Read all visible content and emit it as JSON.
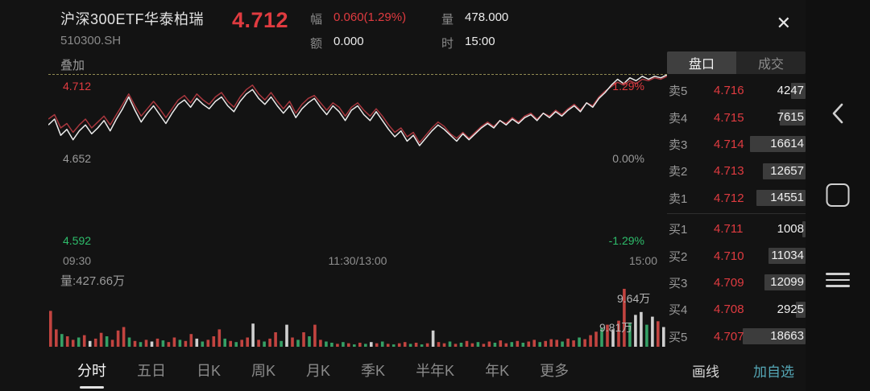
{
  "header": {
    "name": "沪深300ETF华泰柏瑞",
    "price": "4.712",
    "code": "510300.SH",
    "stats": [
      {
        "label": "幅",
        "value": "0.060(1.29%)",
        "color": "red"
      },
      {
        "label": "量",
        "value": "478.000",
        "color": "white"
      },
      {
        "label": "额",
        "value": "0.000",
        "color": "white"
      },
      {
        "label": "时",
        "value": "15:00",
        "color": "white"
      }
    ],
    "close_icon": "✕"
  },
  "chart": {
    "overlay_label": "叠加",
    "y_left_top": "4.712",
    "y_left_mid": "4.652",
    "y_left_bottom": "4.592",
    "y_right_top": "1.29%",
    "y_right_mid": "0.00%",
    "y_right_bottom": "-1.29%",
    "time_left": "09:30",
    "time_mid": "11:30/13:00",
    "time_right": "15:00",
    "volume_label": "量:427.66万",
    "vol_axis_1": "9.64万",
    "vol_axis_2": "9.81万"
  },
  "chart_data": {
    "type": "line",
    "title": "沪深300ETF华泰柏瑞 分时图",
    "x_axis_labels": [
      "09:30",
      "11:30/13:00",
      "15:00"
    ],
    "y_axis_left": [
      4.712,
      4.652,
      4.592
    ],
    "y_axis_right_pct": [
      "1.29%",
      "0.00%",
      "-1.29%"
    ],
    "prev_close": 4.652,
    "ylim": [
      4.592,
      4.712
    ],
    "series": [
      {
        "name": "price",
        "color": "#ececec",
        "values": [
          4.678,
          4.682,
          4.671,
          4.675,
          4.668,
          4.674,
          4.678,
          4.672,
          4.676,
          4.681,
          4.674,
          4.682,
          4.689,
          4.697,
          4.688,
          4.68,
          4.686,
          4.691,
          4.685,
          4.679,
          4.686,
          4.692,
          4.695,
          4.69,
          4.696,
          4.692,
          4.689,
          4.694,
          4.697,
          4.691,
          4.687,
          4.694,
          4.699,
          4.702,
          4.696,
          4.692,
          4.697,
          4.691,
          4.686,
          4.691,
          4.683,
          4.689,
          4.693,
          4.696,
          4.69,
          4.685,
          4.691,
          4.687,
          4.681,
          4.688,
          4.691,
          4.685,
          4.681,
          4.687,
          4.681,
          4.675,
          4.67,
          4.674,
          4.667,
          4.671,
          4.664,
          4.669,
          4.674,
          4.678,
          4.675,
          4.671,
          4.667,
          4.672,
          4.668,
          4.672,
          4.676,
          4.679,
          4.676,
          4.681,
          4.678,
          4.682,
          4.679,
          4.683,
          4.685,
          4.681,
          4.686,
          4.683,
          4.687,
          4.684,
          4.688,
          4.691,
          4.687,
          4.693,
          4.69,
          4.696,
          4.7,
          4.705,
          4.709,
          4.706,
          4.71,
          4.708,
          4.711,
          4.709,
          4.711,
          4.71,
          4.712
        ]
      },
      {
        "name": "overlay",
        "color": "#a8373e",
        "values": [
          4.682,
          4.685,
          4.676,
          4.679,
          4.673,
          4.678,
          4.682,
          4.676,
          4.68,
          4.684,
          4.678,
          4.685,
          4.692,
          4.699,
          4.691,
          4.684,
          4.689,
          4.694,
          4.689,
          4.683,
          4.689,
          4.695,
          4.698,
          4.693,
          4.699,
          4.695,
          4.692,
          4.697,
          4.7,
          4.694,
          4.69,
          4.697,
          4.702,
          4.705,
          4.699,
          4.695,
          4.7,
          4.694,
          4.689,
          4.694,
          4.686,
          4.692,
          4.696,
          4.698,
          4.693,
          4.688,
          4.693,
          4.69,
          4.684,
          4.69,
          4.693,
          4.688,
          4.684,
          4.689,
          4.684,
          4.678,
          4.673,
          4.676,
          4.67,
          4.673,
          4.666,
          4.671,
          4.676,
          4.68,
          4.677,
          4.672,
          4.669,
          4.673,
          4.669,
          4.673,
          4.677,
          4.68,
          4.677,
          4.681,
          4.679,
          4.683,
          4.68,
          4.684,
          4.686,
          4.682,
          4.686,
          4.684,
          4.688,
          4.685,
          4.689,
          4.692,
          4.688,
          4.693,
          4.691,
          4.697,
          4.701,
          4.704,
          4.707,
          4.705,
          4.708,
          4.706,
          4.709,
          4.708,
          4.71,
          4.709,
          4.711
        ]
      }
    ],
    "volume": {
      "total_label": "量:427.66万",
      "axis_labels": [
        "9.64万",
        "9.81万"
      ],
      "heights": [
        62,
        30,
        22,
        18,
        12,
        16,
        20,
        10,
        14,
        24,
        18,
        12,
        28,
        34,
        16,
        10,
        8,
        12,
        9,
        14,
        11,
        8,
        16,
        12,
        10,
        22,
        14,
        9,
        12,
        18,
        30,
        14,
        10,
        8,
        12,
        16,
        40,
        12,
        9,
        14,
        25,
        10,
        38,
        16,
        12,
        25,
        18,
        38,
        12,
        9,
        7,
        5,
        8,
        6,
        4,
        7,
        5,
        8,
        6,
        9,
        5,
        4,
        6,
        8,
        5,
        7,
        4,
        6,
        28,
        8,
        6,
        9,
        5,
        7,
        10,
        6,
        8,
        5,
        9,
        7,
        11,
        6,
        8,
        10,
        7,
        9,
        12,
        8,
        10,
        13,
        12,
        9,
        14,
        11,
        16,
        13,
        20,
        26,
        32,
        38,
        30,
        45,
        100,
        42,
        55,
        60,
        38,
        52,
        44,
        34
      ],
      "colors": "rrgrrgrwrrgrrrgrgrwrgrrgrrwgrrrgrgrrwrgrrgwrgrgrrggrgrgrgwrgrgrrgrgrwrrgrgrrgrrgrrgrgrrgrrrgrrgrrrgrwrrgwwgwrw"
    }
  },
  "order_book": {
    "tabs": [
      {
        "label": "盘口",
        "active": true
      },
      {
        "label": "成交",
        "active": false
      }
    ],
    "asks": [
      {
        "label": "卖5",
        "price": "4.716",
        "vol": "4247"
      },
      {
        "label": "卖4",
        "price": "4.715",
        "vol": "7615"
      },
      {
        "label": "卖3",
        "price": "4.714",
        "vol": "16614"
      },
      {
        "label": "卖2",
        "price": "4.713",
        "vol": "12657"
      },
      {
        "label": "卖1",
        "price": "4.712",
        "vol": "14551"
      }
    ],
    "bids": [
      {
        "label": "买1",
        "price": "4.711",
        "vol": "1008"
      },
      {
        "label": "买2",
        "price": "4.710",
        "vol": "11034"
      },
      {
        "label": "买3",
        "price": "4.709",
        "vol": "12099"
      },
      {
        "label": "买4",
        "price": "4.708",
        "vol": "2925"
      },
      {
        "label": "买5",
        "price": "4.707",
        "vol": "18663"
      }
    ],
    "max_vol": 18663
  },
  "bottom_bar": {
    "tabs": [
      {
        "label": "分时",
        "active": true
      },
      {
        "label": "五日",
        "active": false
      },
      {
        "label": "日K",
        "active": false
      },
      {
        "label": "周K",
        "active": false
      },
      {
        "label": "月K",
        "active": false
      },
      {
        "label": "季K",
        "active": false
      },
      {
        "label": "半年K",
        "active": false
      },
      {
        "label": "年K",
        "active": false
      },
      {
        "label": "更多",
        "active": false
      }
    ],
    "draw_action": "画线",
    "fav_action": "加自选"
  },
  "colors": {
    "up_red": "#e03b40",
    "down_green": "#2ebd6b",
    "accent_teal": "#55a8b7",
    "background": "#131313"
  }
}
